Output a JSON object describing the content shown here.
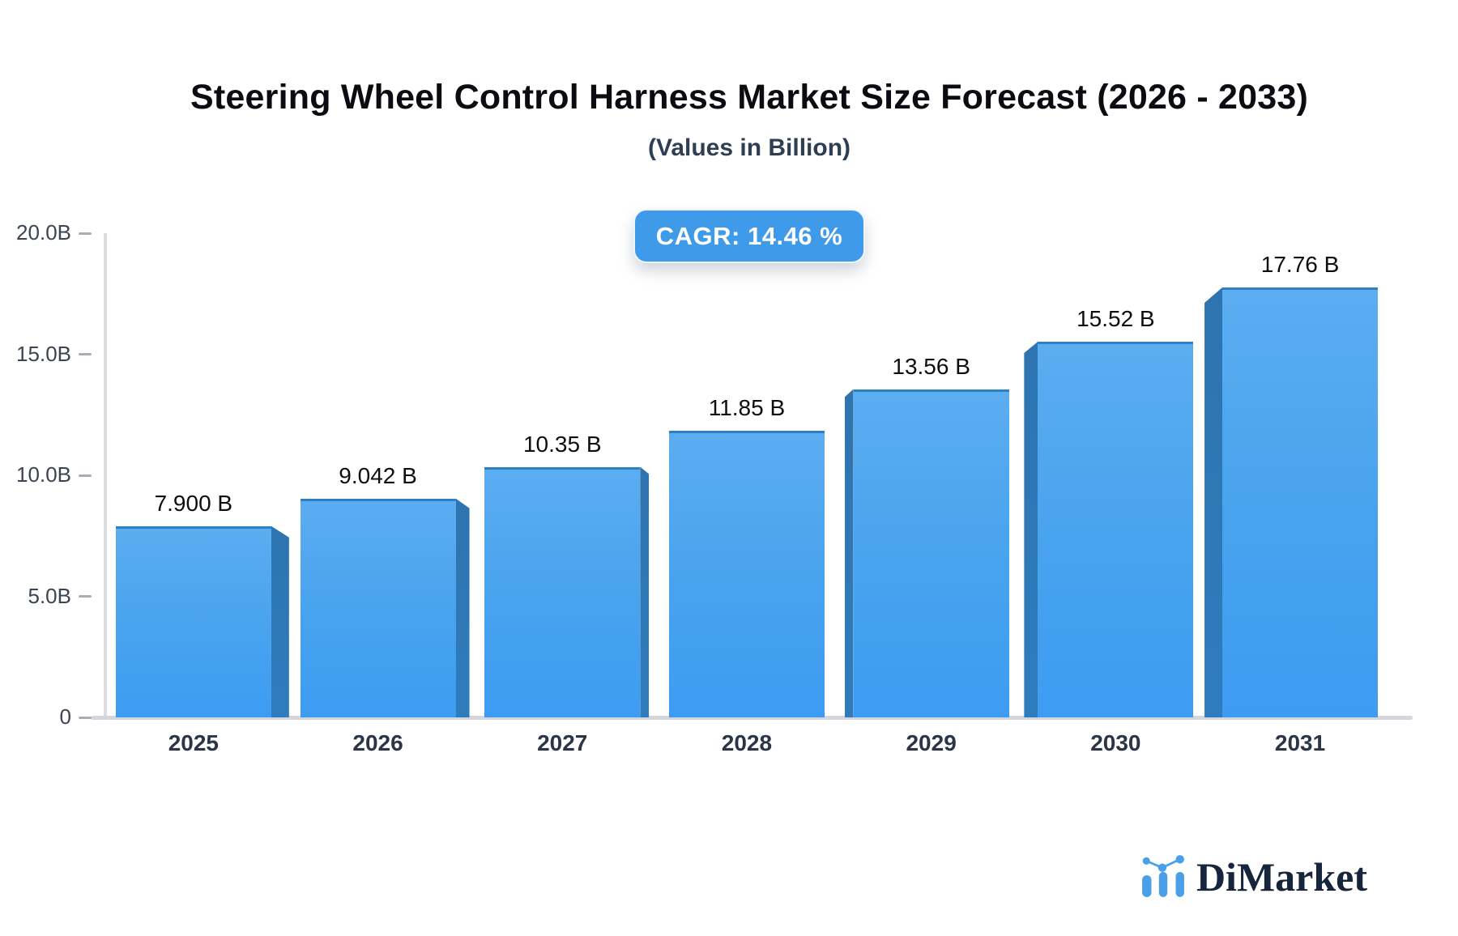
{
  "header": {
    "title": "Steering Wheel Control Harness Market Size Forecast (2026 - 2033)",
    "subtitle": "(Values in Billion)",
    "cagr": "CAGR: 14.46 %"
  },
  "chart_data": {
    "type": "bar",
    "title": "Steering Wheel Control Harness Market Size Forecast (2026 - 2033)",
    "subtitle": "(Values in Billion)",
    "categories": [
      "2025",
      "2026",
      "2027",
      "2028",
      "2029",
      "2030",
      "2031"
    ],
    "values": [
      7.9,
      9.042,
      10.35,
      11.85,
      13.56,
      15.52,
      17.76
    ],
    "value_labels": [
      "7.900 B",
      "9.042 B",
      "10.35 B",
      "11.85 B",
      "13.56 B",
      "15.52 B",
      "17.76 B"
    ],
    "unit": "Billion",
    "ylim": [
      0,
      20
    ],
    "yticks": {
      "values": [
        20,
        15,
        10,
        5,
        0
      ],
      "labels": [
        "20.0B",
        "15.0B",
        "10.0B",
        "5.0B",
        "0"
      ]
    },
    "grid": false,
    "legend": false,
    "colors": {
      "bar_top": "#5cadf0",
      "bar_bottom": "#3d9cf2",
      "bar_edge": "#2d80c3",
      "bar_side": "#2e77b6",
      "badge": "#3f9bea",
      "axis": "#dcdde1"
    },
    "depth3d": {
      "sides": [
        "right",
        "right",
        "right",
        "none",
        "left",
        "left",
        "left"
      ],
      "widths": [
        22,
        17,
        11,
        0,
        11,
        17,
        22
      ],
      "drops": [
        14,
        12,
        9,
        0,
        10,
        14,
        19
      ]
    }
  },
  "footer": {
    "brand": "DiMarket",
    "brand_icon": "bar-line-chart-icon"
  }
}
